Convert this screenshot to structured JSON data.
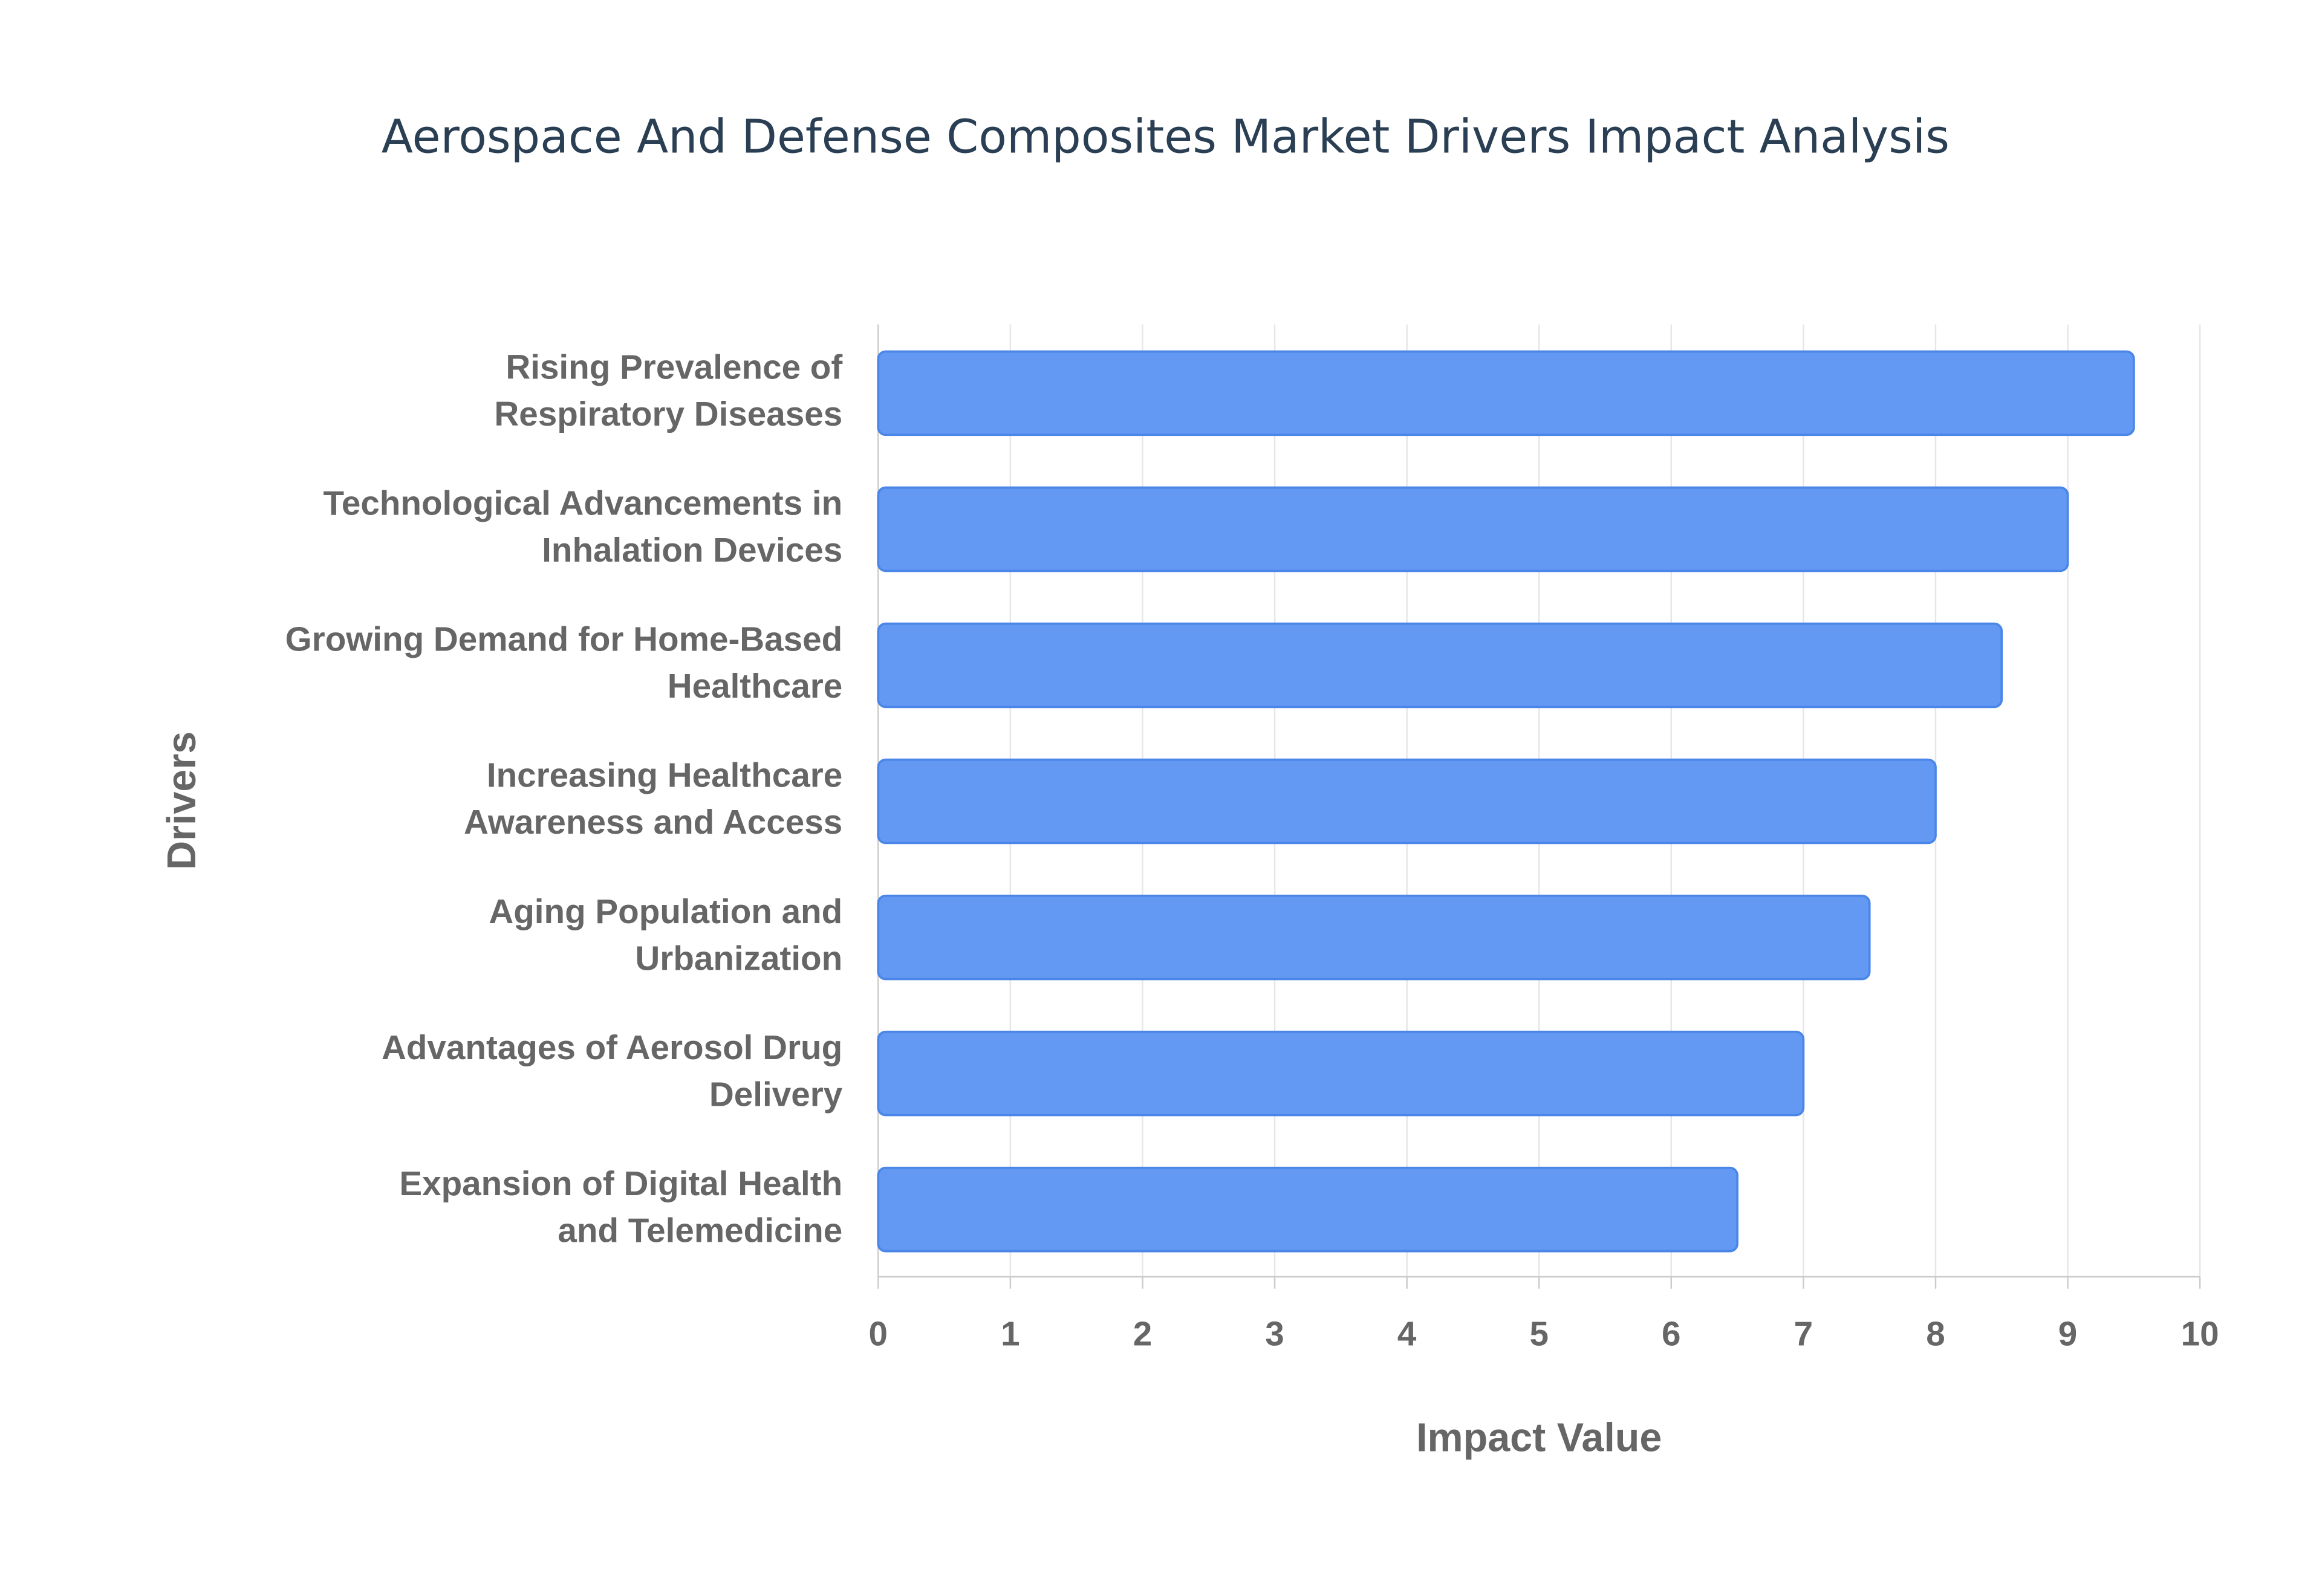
{
  "chart_data": {
    "type": "bar",
    "orientation": "horizontal",
    "title": "Aerospace And Defense Composites Market Drivers Impact Analysis",
    "x_label": "Impact Value",
    "y_label": "Drivers",
    "categories": [
      [
        "Rising Prevalence of",
        "Respiratory Diseases"
      ],
      [
        "Technological Advancements in",
        "Inhalation Devices"
      ],
      [
        "Growing Demand for Home-Based",
        "Healthcare"
      ],
      [
        "Increasing Healthcare",
        "Awareness and Access"
      ],
      [
        "Aging Population and",
        "Urbanization"
      ],
      [
        "Advantages of Aerosol Drug",
        "Delivery"
      ],
      [
        "Expansion of Digital Health",
        "and Telemedicine"
      ]
    ],
    "values": [
      9.5,
      9,
      8.5,
      8,
      7.5,
      7,
      6.5
    ],
    "color": "#6399f3",
    "xlim": [
      0,
      10
    ],
    "xticks": [
      0,
      1,
      2,
      3,
      4,
      5,
      6,
      7,
      8,
      9,
      10
    ],
    "grid": true
  }
}
